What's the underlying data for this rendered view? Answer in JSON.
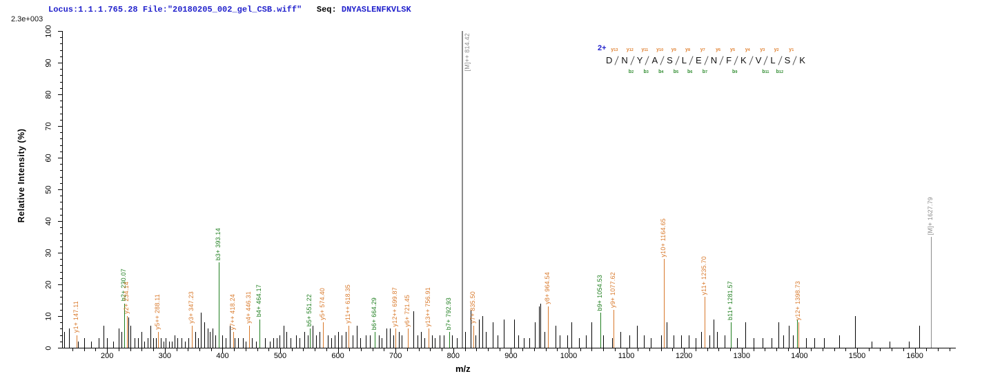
{
  "header": {
    "locus_file": "Locus:1.1.1.765.28 File:\"20180205_002_gel_CSB.wiff\"",
    "seq_label": "Seq:",
    "seq_value": "DNYASLENFKVLSK"
  },
  "chart_data": {
    "type": "bar",
    "subtype": "ms2-spectrum",
    "title": "",
    "xlabel": "m/z",
    "ylabel": "Relative Intensity (%)",
    "base_peak_intensity": "2.3e+003",
    "xlim": [
      122,
      1671
    ],
    "ylim": [
      0,
      100
    ],
    "x_major_ticks": [
      200,
      300,
      400,
      500,
      600,
      700,
      800,
      900,
      1000,
      1100,
      1200,
      1300,
      1400,
      1500,
      1600
    ],
    "x_minor_step": 20,
    "y_major_step": 10,
    "y_minor_step": 2,
    "grid": "off",
    "legend": "none",
    "colors": {
      "y_ion": "#d8782a",
      "b_ion": "#1e7e1e",
      "precursor": "#8a8a8a",
      "peak": "#000000",
      "header_blue": "#2222cc"
    },
    "labeled_peaks": [
      {
        "label": "y1+ 147.11",
        "mz": 147.11,
        "intensity": 4,
        "series": "y_ion"
      },
      {
        "label": "b2+ 230.07",
        "mz": 230.07,
        "intensity": 14,
        "series": "b_ion"
      },
      {
        "label": "y2+ 234.14",
        "mz": 234.14,
        "intensity": 10,
        "series": "y_ion"
      },
      {
        "label": "y5++ 288.11",
        "mz": 288.11,
        "intensity": 5,
        "series": "y_ion"
      },
      {
        "label": "y3+ 347.23",
        "mz": 347.23,
        "intensity": 7,
        "series": "y_ion"
      },
      {
        "label": "b3+ 393.14",
        "mz": 393.14,
        "intensity": 27,
        "series": "b_ion"
      },
      {
        "label": "y7++ 418.24",
        "mz": 418.24,
        "intensity": 5,
        "series": "y_ion"
      },
      {
        "label": "y4+ 446.31",
        "mz": 446.31,
        "intensity": 7,
        "series": "y_ion"
      },
      {
        "label": "b4+ 464.17",
        "mz": 464.17,
        "intensity": 9,
        "series": "b_ion"
      },
      {
        "label": "b5+ 551.22",
        "mz": 551.22,
        "intensity": 6,
        "series": "b_ion"
      },
      {
        "label": "y5+ 574.40",
        "mz": 574.4,
        "intensity": 8,
        "series": "y_ion"
      },
      {
        "label": "y11++ 618.35",
        "mz": 618.35,
        "intensity": 7,
        "series": "y_ion"
      },
      {
        "label": "b6+ 664.29",
        "mz": 664.29,
        "intensity": 5,
        "series": "b_ion"
      },
      {
        "label": "y12++ 699.87",
        "mz": 699.87,
        "intensity": 6,
        "series": "y_ion"
      },
      {
        "label": "y6+ 721.45",
        "mz": 721.45,
        "intensity": 6,
        "series": "y_ion"
      },
      {
        "label": "y13++ 756.91",
        "mz": 756.91,
        "intensity": 6,
        "series": "y_ion"
      },
      {
        "label": "b7+ 792.93",
        "mz": 792.93,
        "intensity": 5,
        "series": "b_ion"
      },
      {
        "label": "[M]++ 814.42",
        "mz": 814.42,
        "intensity": 100,
        "series": "precursor"
      },
      {
        "label": "y7+ 835.50",
        "mz": 835.5,
        "intensity": 7,
        "series": "y_ion"
      },
      {
        "label": "y8+ 964.54",
        "mz": 964.54,
        "intensity": 13,
        "series": "y_ion"
      },
      {
        "label": "b9+ 1054.53",
        "mz": 1054.53,
        "intensity": 11,
        "series": "b_ion"
      },
      {
        "label": "y9+ 1077.62",
        "mz": 1077.62,
        "intensity": 12,
        "series": "y_ion"
      },
      {
        "label": "y10+ 1164.65",
        "mz": 1164.65,
        "intensity": 28,
        "series": "y_ion"
      },
      {
        "label": "y11+ 1235.70",
        "mz": 1235.7,
        "intensity": 16,
        "series": "y_ion"
      },
      {
        "label": "b11+ 1281.57",
        "mz": 1281.57,
        "intensity": 8,
        "series": "b_ion"
      },
      {
        "label": "",
        "mz": 1396.0,
        "intensity": 9,
        "series": "b_ion"
      },
      {
        "label": "y12+ 1398.73",
        "mz": 1398.73,
        "intensity": 8,
        "series": "y_ion"
      },
      {
        "label": "[M]+ 1627.79",
        "mz": 1627.79,
        "intensity": 35,
        "series": "precursor"
      }
    ],
    "unlabeled_peaks": [
      [
        125,
        5
      ],
      [
        134,
        6
      ],
      [
        150,
        2
      ],
      [
        160,
        3
      ],
      [
        172,
        2
      ],
      [
        185,
        3
      ],
      [
        194,
        7
      ],
      [
        200,
        3
      ],
      [
        210,
        2
      ],
      [
        220,
        6
      ],
      [
        225,
        5
      ],
      [
        237,
        9.5
      ],
      [
        241,
        7
      ],
      [
        248,
        3
      ],
      [
        253,
        3
      ],
      [
        259,
        5
      ],
      [
        264,
        2
      ],
      [
        270,
        3
      ],
      [
        275,
        7
      ],
      [
        280,
        3
      ],
      [
        285,
        3
      ],
      [
        293,
        3
      ],
      [
        298,
        2
      ],
      [
        302,
        3
      ],
      [
        307,
        2
      ],
      [
        312,
        2
      ],
      [
        317,
        4
      ],
      [
        322,
        3
      ],
      [
        329,
        3
      ],
      [
        335,
        2
      ],
      [
        341,
        3
      ],
      [
        353,
        5
      ],
      [
        358,
        3
      ],
      [
        363,
        11
      ],
      [
        369,
        8
      ],
      [
        374,
        6
      ],
      [
        378,
        5
      ],
      [
        383,
        6
      ],
      [
        388,
        4
      ],
      [
        400,
        4
      ],
      [
        406,
        3
      ],
      [
        413,
        7
      ],
      [
        421,
        3
      ],
      [
        427,
        3
      ],
      [
        435,
        3
      ],
      [
        440,
        2
      ],
      [
        451,
        3
      ],
      [
        458,
        2
      ],
      [
        474,
        3
      ],
      [
        482,
        2
      ],
      [
        488,
        3
      ],
      [
        494,
        3
      ],
      [
        499,
        4
      ],
      [
        506,
        7
      ],
      [
        511,
        5
      ],
      [
        518,
        3
      ],
      [
        528,
        4
      ],
      [
        534,
        3
      ],
      [
        542,
        5
      ],
      [
        548,
        4
      ],
      [
        556,
        7
      ],
      [
        562,
        4
      ],
      [
        568,
        5
      ],
      [
        582,
        4
      ],
      [
        588,
        3
      ],
      [
        594,
        4
      ],
      [
        601,
        5
      ],
      [
        607,
        4
      ],
      [
        614,
        5
      ],
      [
        626,
        4
      ],
      [
        633,
        7
      ],
      [
        639,
        3
      ],
      [
        648,
        4
      ],
      [
        656,
        4
      ],
      [
        671,
        4
      ],
      [
        676,
        3
      ],
      [
        684,
        6
      ],
      [
        690,
        6
      ],
      [
        696,
        4
      ],
      [
        706,
        5
      ],
      [
        710,
        4
      ],
      [
        731,
        11.5
      ],
      [
        738,
        4
      ],
      [
        744,
        5
      ],
      [
        750,
        3
      ],
      [
        763,
        4
      ],
      [
        768,
        3
      ],
      [
        776,
        4
      ],
      [
        783,
        4
      ],
      [
        798,
        4
      ],
      [
        806,
        3
      ],
      [
        820,
        5
      ],
      [
        830,
        12
      ],
      [
        838,
        4
      ],
      [
        845,
        9
      ],
      [
        851,
        10
      ],
      [
        857,
        5
      ],
      [
        869,
        8
      ],
      [
        877,
        4
      ],
      [
        887,
        9
      ],
      [
        905,
        9
      ],
      [
        913,
        4
      ],
      [
        922,
        3
      ],
      [
        932,
        3
      ],
      [
        941,
        8
      ],
      [
        948,
        13
      ],
      [
        951,
        14
      ],
      [
        958,
        5
      ],
      [
        977,
        7
      ],
      [
        985,
        4
      ],
      [
        997,
        4
      ],
      [
        1005,
        8
      ],
      [
        1018,
        3
      ],
      [
        1030,
        4
      ],
      [
        1040,
        8
      ],
      [
        1060,
        4
      ],
      [
        1075,
        3
      ],
      [
        1090,
        5
      ],
      [
        1105,
        4
      ],
      [
        1118,
        7
      ],
      [
        1130,
        4
      ],
      [
        1142,
        3
      ],
      [
        1160,
        4
      ],
      [
        1170,
        8
      ],
      [
        1182,
        4
      ],
      [
        1195,
        4
      ],
      [
        1208,
        4
      ],
      [
        1220,
        3
      ],
      [
        1230,
        5
      ],
      [
        1244,
        4
      ],
      [
        1251,
        9
      ],
      [
        1257,
        5
      ],
      [
        1270,
        4
      ],
      [
        1292,
        3
      ],
      [
        1306,
        8
      ],
      [
        1320,
        3
      ],
      [
        1336,
        3
      ],
      [
        1352,
        3
      ],
      [
        1364,
        8
      ],
      [
        1372,
        4
      ],
      [
        1381,
        7
      ],
      [
        1389,
        4
      ],
      [
        1412,
        3
      ],
      [
        1426,
        3
      ],
      [
        1442,
        3
      ],
      [
        1469,
        4
      ],
      [
        1496,
        10
      ],
      [
        1525,
        2
      ],
      [
        1556,
        2
      ],
      [
        1590,
        2
      ],
      [
        1608,
        7
      ]
    ]
  },
  "peptide_map": {
    "charge_label": "2+",
    "residues": [
      "D",
      "N",
      "Y",
      "A",
      "S",
      "L",
      "E",
      "N",
      "F",
      "K",
      "V",
      "L",
      "S",
      "K"
    ],
    "gaps": [
      {
        "y": "y13",
        "b": ""
      },
      {
        "y": "y12",
        "b": "b2"
      },
      {
        "y": "y11",
        "b": "b3"
      },
      {
        "y": "y10",
        "b": "b4"
      },
      {
        "y": "y9",
        "b": "b5"
      },
      {
        "y": "y8",
        "b": "b6"
      },
      {
        "y": "y7",
        "b": "b7"
      },
      {
        "y": "y6",
        "b": ""
      },
      {
        "y": "y5",
        "b": "b9"
      },
      {
        "y": "y4",
        "b": ""
      },
      {
        "y": "y3",
        "b": "b11"
      },
      {
        "y": "y2",
        "b": "b12"
      },
      {
        "y": "y1",
        "b": ""
      }
    ]
  }
}
